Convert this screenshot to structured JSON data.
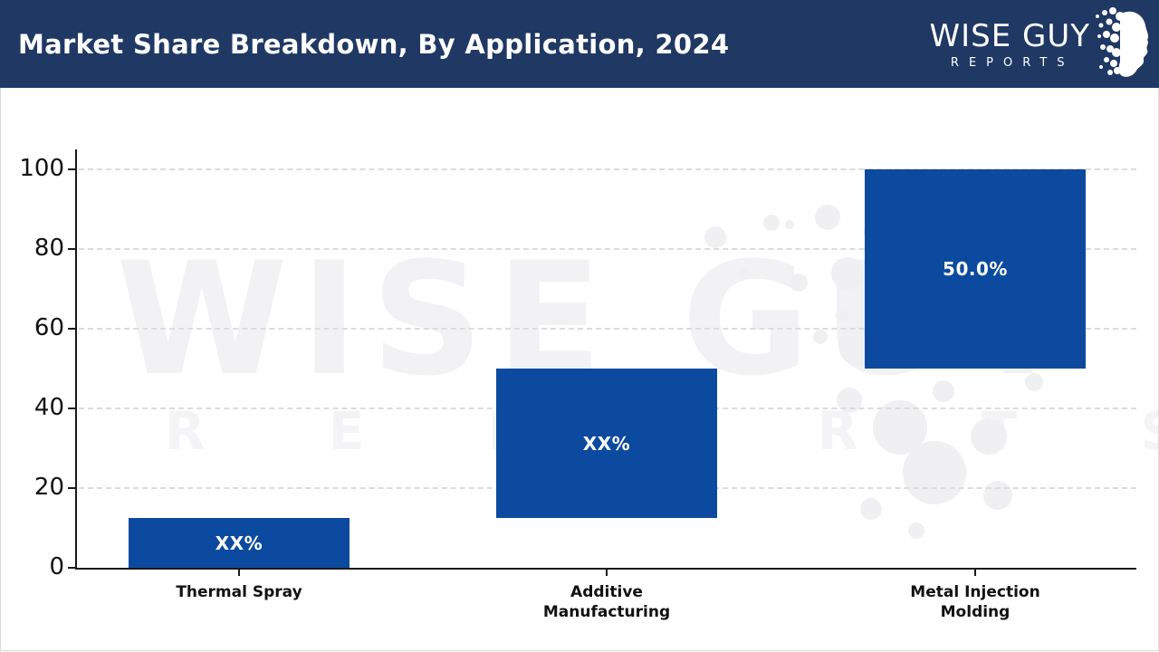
{
  "header": {
    "title": "Market Share Breakdown, By Application, 2024",
    "bg_color": "#1F3864",
    "logo": {
      "line1": "WISE GUY",
      "line2": "REPORTS"
    }
  },
  "watermark": {
    "line1": "WISE GUY",
    "line2": "R E P O R T S"
  },
  "chart_data": {
    "type": "bar",
    "subtype": "waterfall",
    "title": "Market Share Breakdown, By Application, 2024",
    "categories": [
      "Thermal Spray",
      "Additive\nManufacturing",
      "Metal Injection\nMolding"
    ],
    "segments": [
      {
        "category": "Thermal Spray",
        "base": 0,
        "value": 12.5,
        "label": "XX%"
      },
      {
        "category": "Additive Manufacturing",
        "base": 12.5,
        "value": 37.5,
        "label": "XX%"
      },
      {
        "category": "Metal Injection Molding",
        "base": 50,
        "value": 50,
        "label": "50.0%"
      }
    ],
    "yticks": [
      0,
      20,
      40,
      60,
      80,
      100
    ],
    "ylim": [
      0,
      105
    ],
    "xlabel": "",
    "ylabel": "",
    "grid": "horizontal-dashed",
    "legend": "none",
    "bar_color": "#0B4A9F",
    "label_color": "#ffffff"
  }
}
